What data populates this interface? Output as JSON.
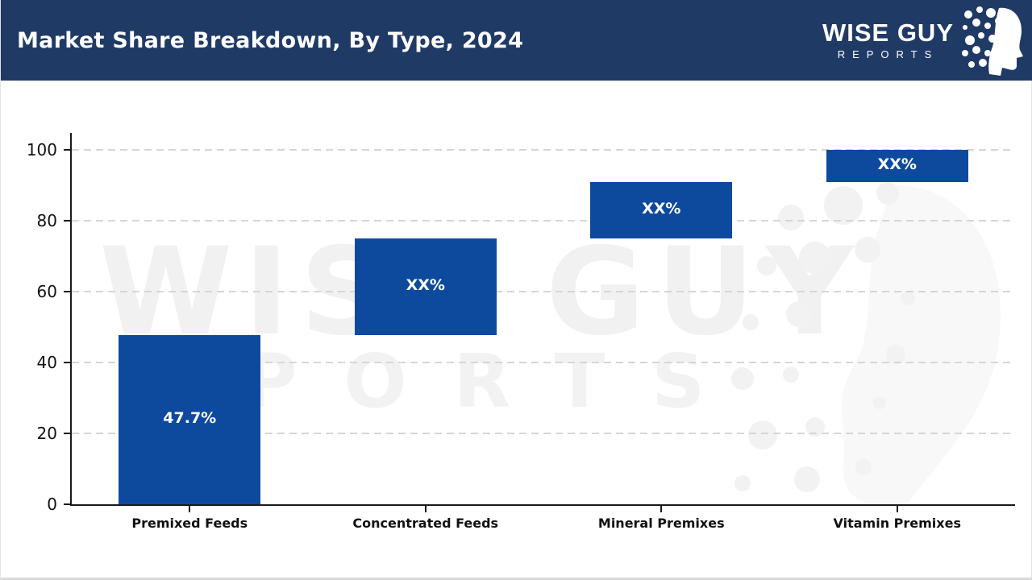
{
  "header": {
    "title": "Market Share Breakdown, By Type, 2024",
    "logo": {
      "line1": "WISE GUY",
      "line2": "REPORTS"
    }
  },
  "watermark": {
    "line1": "WISE GUY",
    "line2": "PORTS"
  },
  "chart_data": {
    "type": "bar",
    "subtype": "waterfall",
    "title": "Market Share Breakdown, By Type, 2024",
    "categories": [
      "Premixed Feeds",
      "Concentrated Feeds",
      "Mineral Premixes",
      "Vitamin Premixes"
    ],
    "segments": [
      {
        "category": "Premixed Feeds",
        "start": 0,
        "end": 47.7,
        "label": "47.7%"
      },
      {
        "category": "Concentrated Feeds",
        "start": 47.7,
        "end": 75,
        "label": "XX%"
      },
      {
        "category": "Mineral Premixes",
        "start": 75,
        "end": 91,
        "label": "XX%"
      },
      {
        "category": "Vitamin Premixes",
        "start": 91,
        "end": 100,
        "label": "XX%"
      }
    ],
    "values_increment_estimate": [
      47.7,
      27.3,
      16,
      9
    ],
    "xlabel": "",
    "ylabel": "",
    "ylim": [
      0,
      100
    ],
    "yticks": [
      0,
      20,
      40,
      60,
      80,
      100
    ],
    "grid": "horizontal-dashed",
    "legend": "none"
  },
  "colors": {
    "header_bg": "#203a66",
    "bar": "#0d4a9e",
    "bar_label": "#ffffff",
    "axis": "#1a1a1a",
    "grid": "#d6d6d6",
    "title_text": "#ffffff"
  }
}
